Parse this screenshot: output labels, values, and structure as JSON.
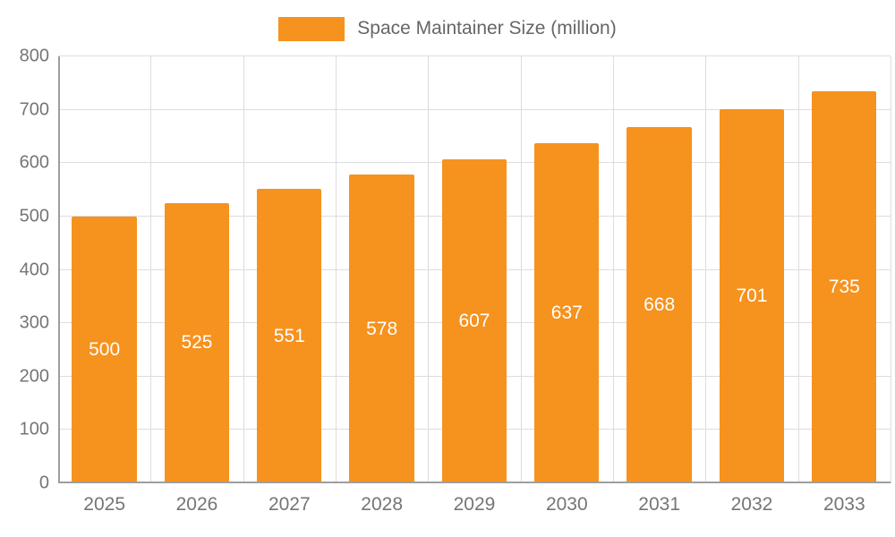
{
  "chart_data": {
    "type": "bar",
    "title": "Space Maintainer Size (million)",
    "categories": [
      "2025",
      "2026",
      "2027",
      "2028",
      "2029",
      "2030",
      "2031",
      "2032",
      "2033"
    ],
    "values": [
      500,
      525,
      551,
      578,
      607,
      637,
      668,
      701,
      735
    ],
    "xlabel": "",
    "ylabel": "",
    "ylim": [
      0,
      800
    ],
    "y_ticks": [
      0,
      100,
      200,
      300,
      400,
      500,
      600,
      700,
      800
    ],
    "grid": true,
    "legend_position": "top",
    "bar_color": "#F6921E",
    "value_label_color": "#FFFFFF"
  },
  "legend": {
    "label": "Space Maintainer Size (million)"
  },
  "colors": {
    "bar": "#F6921E",
    "axis_text": "#757575",
    "gridline": "#DDDDDD",
    "axis_line": "#9E9E9E"
  }
}
